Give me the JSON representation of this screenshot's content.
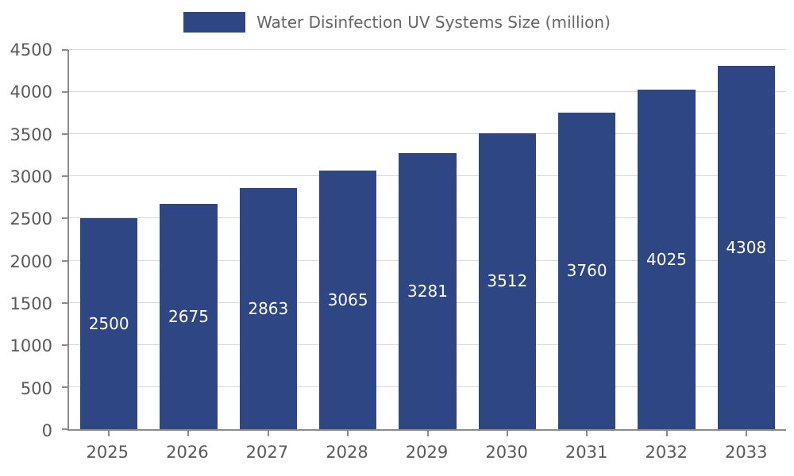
{
  "chart_data": {
    "type": "bar",
    "title": "Water Disinfection UV Systems Size (million)",
    "categories": [
      "2025",
      "2026",
      "2027",
      "2028",
      "2029",
      "2030",
      "2031",
      "2032",
      "2033"
    ],
    "values": [
      2500,
      2675,
      2863,
      3065,
      3281,
      3512,
      3760,
      4025,
      4308
    ],
    "xlabel": "",
    "ylabel": "",
    "ylim": [
      0,
      4500
    ],
    "yticks": [
      0,
      500,
      1000,
      1500,
      2000,
      2500,
      3000,
      3500,
      4000,
      4500
    ],
    "grid": true,
    "legend_position": "top-center",
    "bar_color": "#2F4684",
    "value_label_color": "#ffffff",
    "tick_label_color": "#595959",
    "legend_text_color": "#666666",
    "gridline_color": "#d9d9d9"
  }
}
